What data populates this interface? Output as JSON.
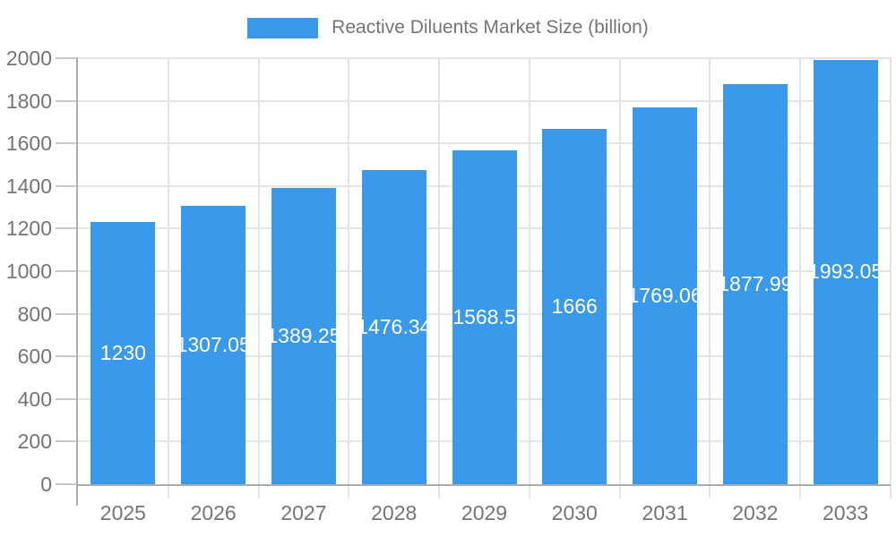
{
  "chart_data": {
    "type": "bar",
    "title": "Reactive Diluents Market Size (billion)",
    "xlabel": "",
    "ylabel": "",
    "categories": [
      "2025",
      "2026",
      "2027",
      "2028",
      "2029",
      "2030",
      "2031",
      "2032",
      "2033"
    ],
    "series": [
      {
        "name": "Reactive Diluents Market Size (billion)",
        "values": [
          1230,
          1307.05,
          1389.25,
          1476.34,
          1568.5,
          1666,
          1769.06,
          1877.99,
          1993.05
        ],
        "value_labels": [
          "1230",
          "1307.05",
          "1389.25",
          "1476.34",
          "1568.5",
          "1666",
          "1769.06",
          "1877.99",
          "1993.05"
        ]
      }
    ],
    "ylim": [
      0,
      2000
    ],
    "ytick_interval": 200,
    "ytick_labels": [
      "0",
      "200",
      "400",
      "600",
      "800",
      "1000",
      "1200",
      "1400",
      "1600",
      "1800",
      "2000"
    ],
    "grid": true,
    "legend_position": "top",
    "colors": {
      "bar": "#3B99EC",
      "value_label": "#FFFFFF",
      "axis_text": "#757575",
      "gridline": "#E4E4E4",
      "axis_line": "#ABABAB",
      "tick": "#C9C9C9",
      "background": "#FFFFFF"
    }
  },
  "legend": {
    "label": "Reactive Diluents Market Size (billion)"
  }
}
